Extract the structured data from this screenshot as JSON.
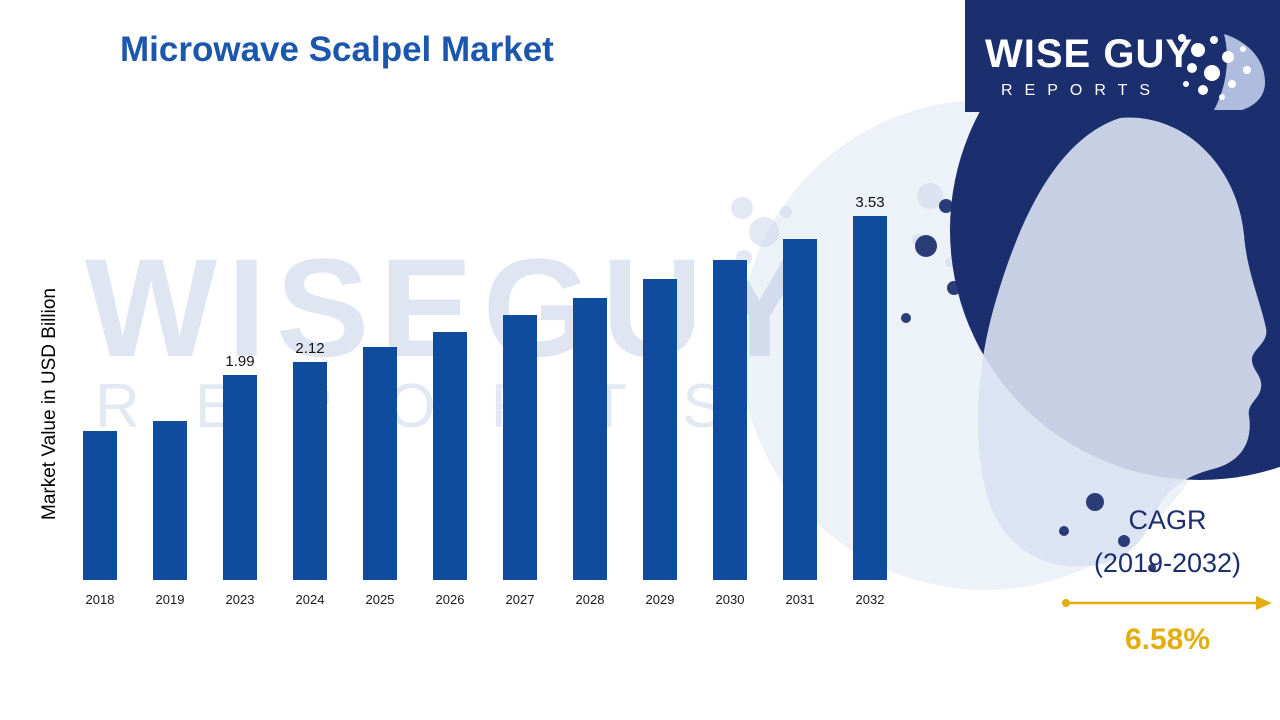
{
  "page": {
    "title": "Microwave Scalpel Market"
  },
  "logo": {
    "line1": "WISE GUY",
    "line2": "REPORTS"
  },
  "watermark": {
    "line1": "WISEGUY",
    "line2": "REPORTS"
  },
  "chart_data": {
    "type": "bar",
    "title": "Microwave Scalpel Market",
    "xlabel": "",
    "ylabel": "Market Value in USD Billion",
    "categories": [
      "2018",
      "2019",
      "2023",
      "2024",
      "2025",
      "2026",
      "2027",
      "2028",
      "2029",
      "2030",
      "2031",
      "2032"
    ],
    "values": [
      1.45,
      1.54,
      1.99,
      2.12,
      2.26,
      2.41,
      2.57,
      2.74,
      2.92,
      3.11,
      3.31,
      3.53
    ],
    "value_labels": {
      "2023": "1.99",
      "2024": "2.12",
      "2032": "3.53"
    },
    "ylim": [
      0,
      3.8
    ],
    "grid": false,
    "legend": "none",
    "bar_color": "#0f4c9e"
  },
  "cagr": {
    "line1": "CAGR",
    "line2": "(2019-2032)",
    "value": "6.58%"
  },
  "colors": {
    "bar": "#0f4c9e",
    "title": "#1a57ad",
    "navy": "#1b2e6e",
    "gold": "#e3ae0d",
    "watermark": "#9db1d6"
  }
}
